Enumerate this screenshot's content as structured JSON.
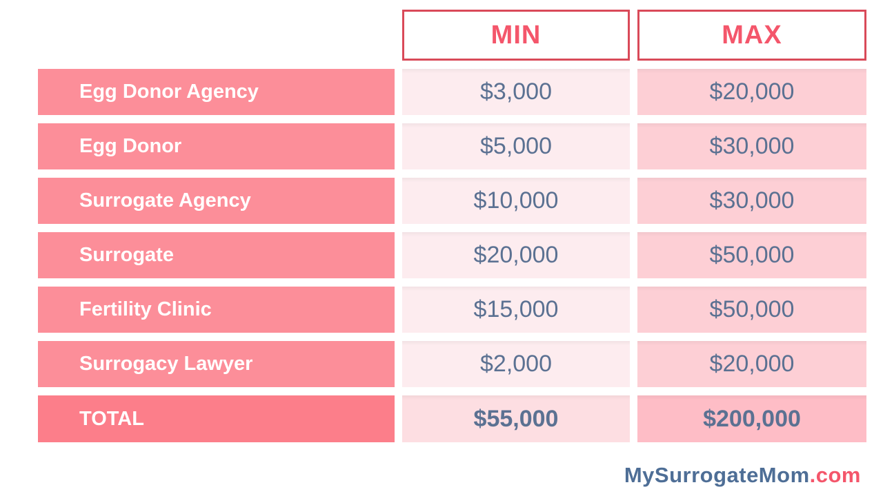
{
  "chart_data": {
    "type": "table",
    "columns": [
      "",
      "MIN",
      "MAX"
    ],
    "rows": [
      [
        "Egg Donor Agency",
        "$3,000",
        "$20,000"
      ],
      [
        "Egg Donor",
        "$5,000",
        "$30,000"
      ],
      [
        "Surrogate Agency",
        "$10,000",
        "$30,000"
      ],
      [
        "Surrogate",
        "$20,000",
        "$50,000"
      ],
      [
        "Fertility Clinic",
        "$15,000",
        "$50,000"
      ],
      [
        "Surrogacy Lawyer",
        "$2,000",
        "$20,000"
      ],
      [
        "TOTAL",
        "$55,000",
        "$200,000"
      ]
    ]
  },
  "branding": {
    "site_name": "MySurrogateMom",
    "site_tld": ".com"
  },
  "colors": {
    "row_label_bg": "#FC8E99",
    "total_label_bg": "#FC7E8A",
    "min_cell_bg": "#FDECEF",
    "max_cell_bg": "#FDCFD5",
    "total_min_cell_bg": "#FDDEE2",
    "total_max_cell_bg": "#FEBDC6",
    "header_text": "#F4566B",
    "header_border": "#D94A59",
    "value_text": "#5B7192",
    "label_text": "#FFFFFF",
    "logo_blue": "#4E6E96",
    "logo_accent": "#F4566B"
  }
}
